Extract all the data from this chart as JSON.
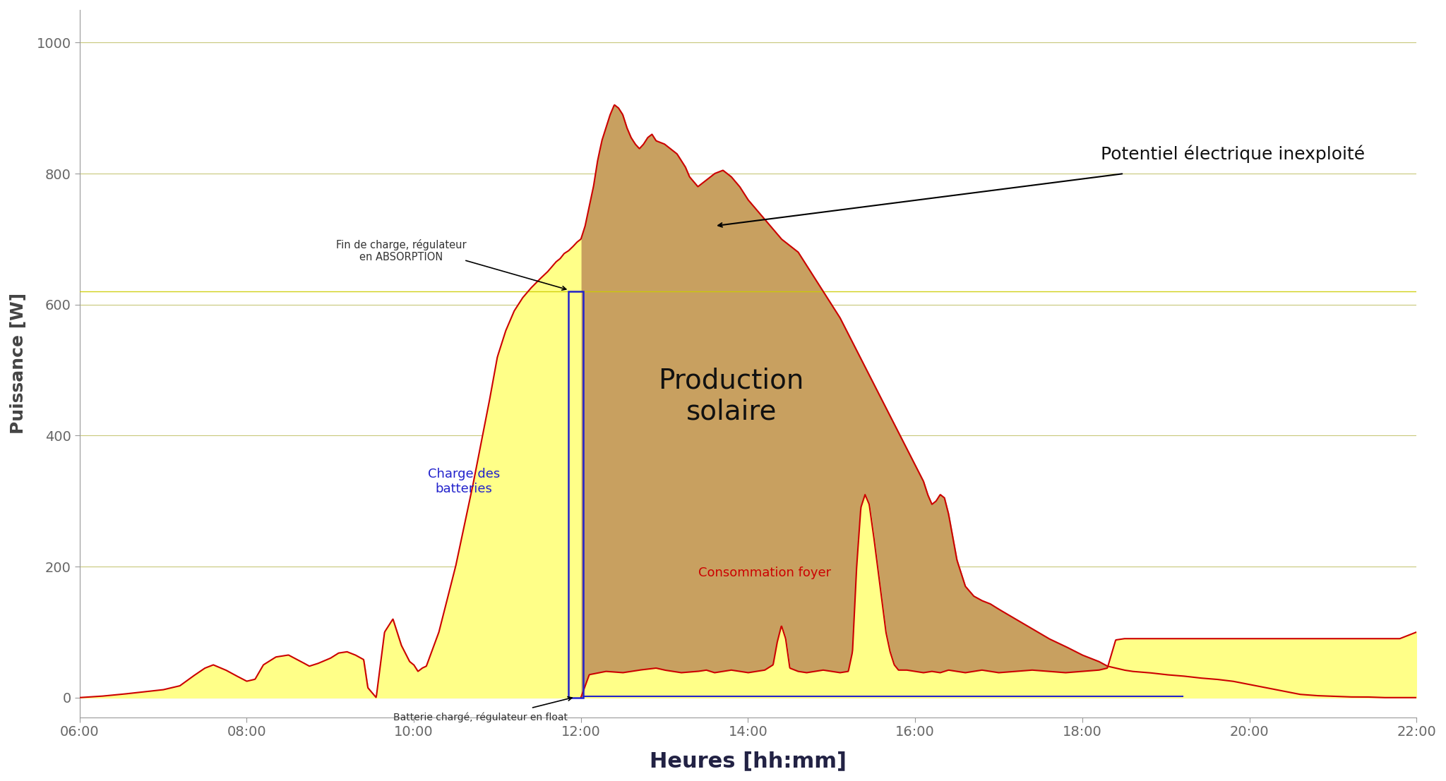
{
  "xlabel": "Heures [hh:mm]",
  "ylabel": "Puissance [W]",
  "xlim": [
    6.0,
    22.0
  ],
  "ylim": [
    -30,
    1050
  ],
  "yticks": [
    0,
    200,
    400,
    600,
    800,
    1000
  ],
  "xtick_labels": [
    "06:00",
    "08:00",
    "10:00",
    "12:00",
    "14:00",
    "16:00",
    "18:00",
    "20:00",
    "22:00"
  ],
  "xtick_vals": [
    6,
    8,
    10,
    12,
    14,
    16,
    18,
    20,
    22
  ],
  "solar_color": "#C8A060",
  "battery_color": "#FFFF88",
  "consommation_color": "#FFFF88",
  "solar_line_color": "#CC0000",
  "battery_box_color": "#2222CC",
  "grid_color": "#C8C87A",
  "background_color": "#FFFFFF",
  "label_production": "Production\nsolaire",
  "label_battery": "Charge des\nbatteries",
  "label_consommation": "Consommation foyer",
  "label_potentiel": "Potentiel électrique inexploité",
  "label_fin_charge": "Fin de charge, régulateur\nen ABSORPTION",
  "label_batterie_float": "Batterie chargé, régulateur en float",
  "absorption_level": 620,
  "blue_line_end": 19.2
}
